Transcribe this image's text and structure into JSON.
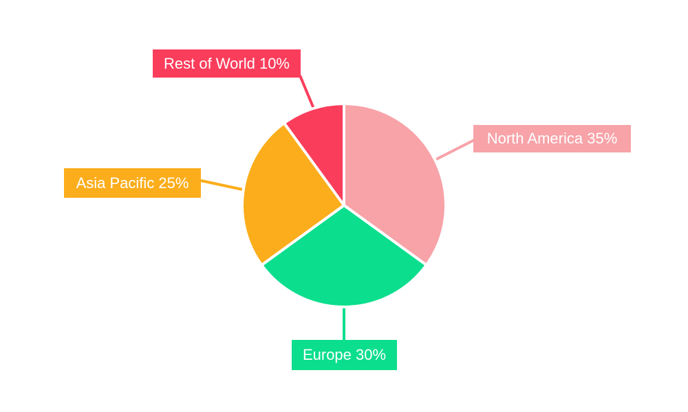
{
  "chart_data": {
    "type": "pie",
    "title": "",
    "legend_position": "none",
    "background_color": "#ffffff",
    "label_text_color": "#ffffff",
    "start_angle": "12-oclock",
    "direction": "clockwise",
    "slices": [
      {
        "name": "North America",
        "value": 35,
        "unit": "%",
        "color": "#F7A3A8",
        "label": "North America 35%"
      },
      {
        "name": "Europe",
        "value": 30,
        "unit": "%",
        "color": "#0BDE8D",
        "label": "Europe 30%"
      },
      {
        "name": "Asia Pacific",
        "value": 25,
        "unit": "%",
        "color": "#FBAD1B",
        "label": "Asia Pacific 25%"
      },
      {
        "name": "Rest of World",
        "value": 10,
        "unit": "%",
        "color": "#FB3D5C",
        "label": "Rest of World 10%"
      }
    ]
  }
}
